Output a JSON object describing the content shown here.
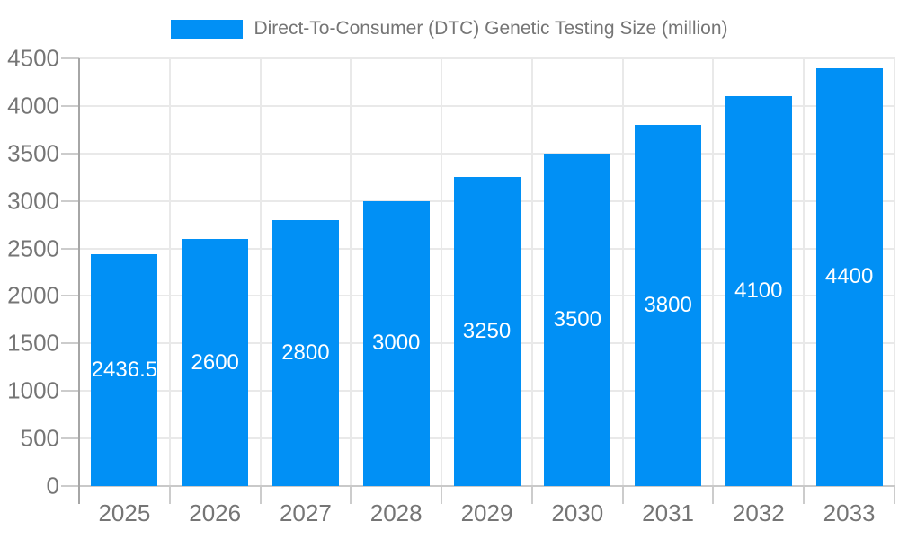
{
  "legend": {
    "label": "Direct-To-Consumer (DTC) Genetic Testing Size (million)"
  },
  "chart_data": {
    "type": "bar",
    "title": "Direct-To-Consumer (DTC) Genetic Testing Size (million)",
    "series_name": "Direct-To-Consumer (DTC) Genetic Testing Size (million)",
    "categories": [
      "2025",
      "2026",
      "2027",
      "2028",
      "2029",
      "2030",
      "2031",
      "2032",
      "2033"
    ],
    "values": [
      2436.5,
      2600,
      2800,
      3000,
      3250,
      3500,
      3800,
      4100,
      4400
    ],
    "bar_labels": [
      "2436.5",
      "2600",
      "2800",
      "3000",
      "3250",
      "3500",
      "3800",
      "4100",
      "4400"
    ],
    "xlabel": "",
    "ylabel": "",
    "ylim": [
      0,
      4500
    ],
    "yticks": [
      0,
      500,
      1000,
      1500,
      2000,
      2500,
      3000,
      3500,
      4000,
      4500
    ],
    "grid": true,
    "legend_position": "top-center",
    "colors": {
      "bar": "#0190f5",
      "bar_label": "#ffffff",
      "axis_text": "#757575",
      "gridline": "#e9e9e9",
      "tick": "#cccccc",
      "y_axis_line": "#a6a6a6",
      "x_axis_line": "#c9c9c9",
      "background": "#ffffff"
    }
  }
}
